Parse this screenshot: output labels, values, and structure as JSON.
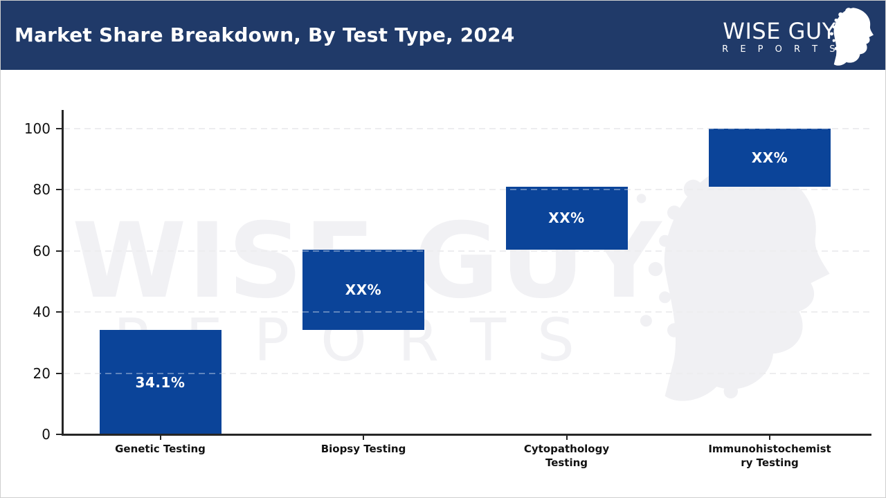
{
  "header": {
    "title": "Market Share Breakdown, By Test Type, 2024",
    "background": "#203A69",
    "logo": {
      "name": "WISE GUY",
      "sub": "R E P O R T S"
    }
  },
  "watermark": {
    "line1": "WISE GUY",
    "line2": "R E P O R T S"
  },
  "chart_data": {
    "type": "bar",
    "subtype": "waterfall",
    "title": "Market Share Breakdown, By Test Type, 2024",
    "categories": [
      "Genetic Testing",
      "Biopsy Testing",
      "Cytopathology\nTesting",
      "Immunohistochemist\nry Testing"
    ],
    "segments": [
      {
        "category": "Genetic Testing",
        "start": 0,
        "end": 34.1,
        "label": "34.1%"
      },
      {
        "category": "Biopsy Testing",
        "start": 34.1,
        "end": 60.5,
        "label": "XX%"
      },
      {
        "category": "Cytopathology Testing",
        "start": 60.5,
        "end": 81,
        "label": "XX%"
      },
      {
        "category": "Immunohistochemistry Testing",
        "start": 81,
        "end": 100,
        "label": "XX%"
      }
    ],
    "xlabel": "",
    "ylabel": "",
    "ylim": [
      0,
      100
    ],
    "yticks": [
      0,
      20,
      40,
      60,
      80,
      100
    ],
    "grid": "horizontal-dashed",
    "legend": "none",
    "bar_color": "#0B4499",
    "bar_label_color": "#FFFFFF",
    "axis_color": "#262626",
    "note": "Waterfall-style stacked market share; values masked as XX% except first segment (34.1%)."
  }
}
